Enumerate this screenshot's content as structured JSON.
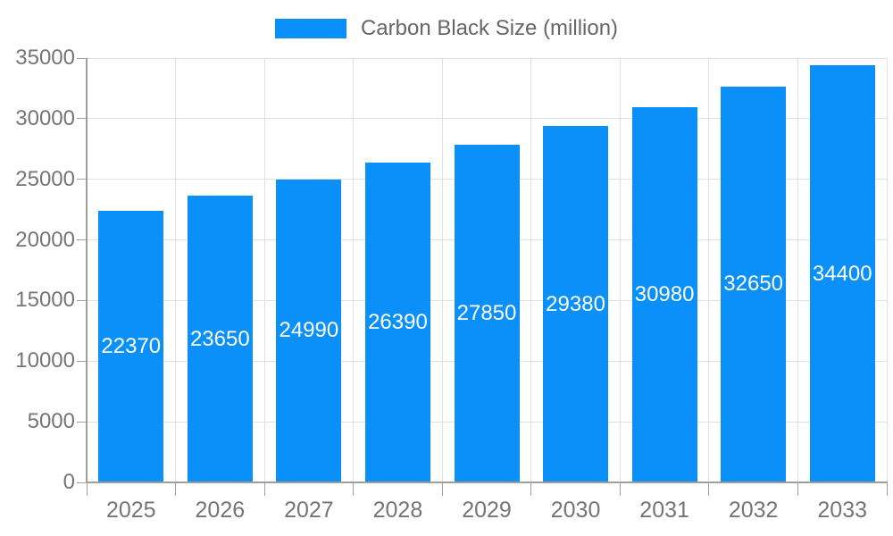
{
  "legend": {
    "label": "Carbon Black Size (million)"
  },
  "colors": {
    "bar": "#0a90f8",
    "grid": "#e0e0e0",
    "axis": "#9e9e9e",
    "tick_text": "#757575",
    "legend_text": "#666666",
    "bar_label_text": "#ffffff"
  },
  "chart_data": {
    "type": "bar",
    "title": "",
    "legend": "Carbon Black Size (million)",
    "legend_position": "top",
    "categories": [
      "2025",
      "2026",
      "2027",
      "2028",
      "2029",
      "2030",
      "2031",
      "2032",
      "2033"
    ],
    "values": [
      22370,
      23650,
      24990,
      26390,
      27850,
      29380,
      30980,
      32650,
      34400
    ],
    "xlabel": "",
    "ylabel": "",
    "ylim": [
      0,
      35000
    ],
    "ytick_step": 5000,
    "yticks": [
      0,
      5000,
      10000,
      15000,
      20000,
      25000,
      30000,
      35000
    ],
    "grid": true,
    "bar_value_labels": true,
    "bar_value_label_position": "inside-middle"
  }
}
